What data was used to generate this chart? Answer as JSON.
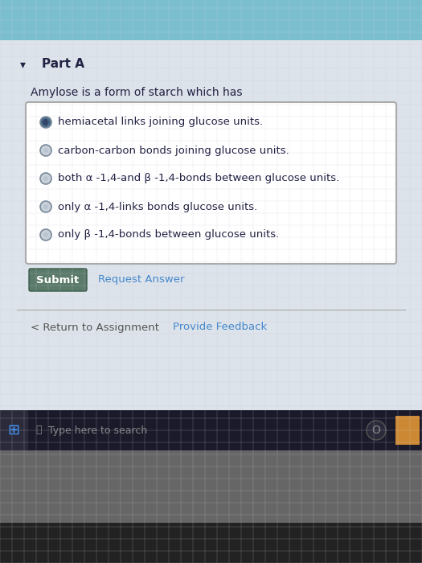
{
  "bg_top_color": "#7bbfcf",
  "bg_main_color": "#dde3ea",
  "part_a_label": "Part A",
  "arrow_symbol": "▾",
  "question": "Amylose is a form of starch which has",
  "options": [
    "hemiacetal links joining glucose units.",
    "carbon-carbon bonds joining glucose units.",
    "both α -1,4-and β -1,4-bonds between glucose units.",
    "only α -1,4-links bonds glucose units.",
    "only β -1,4-bonds between glucose units."
  ],
  "radio_fill": [
    "#4a6a8a",
    "#c8d0d8",
    "#c8d0d8",
    "#c8d0d8",
    "#c8d0d8"
  ],
  "box_border_color": "#aaaaaa",
  "box_bg_color": "#ffffff",
  "submit_bg": "#5a7a6a",
  "submit_text_color": "#ffffff",
  "submit_label": "Submit",
  "request_answer_label": "Request Answer",
  "request_answer_color": "#4488cc",
  "return_label": "< Return to Assignment",
  "return_color": "#555555",
  "feedback_label": "Provide Feedback",
  "feedback_color": "#4488cc",
  "taskbar_bg": "#1a1a2a",
  "taskbar_search": "Type here to search",
  "grid_color": "#ccccdd",
  "text_color": "#222244"
}
